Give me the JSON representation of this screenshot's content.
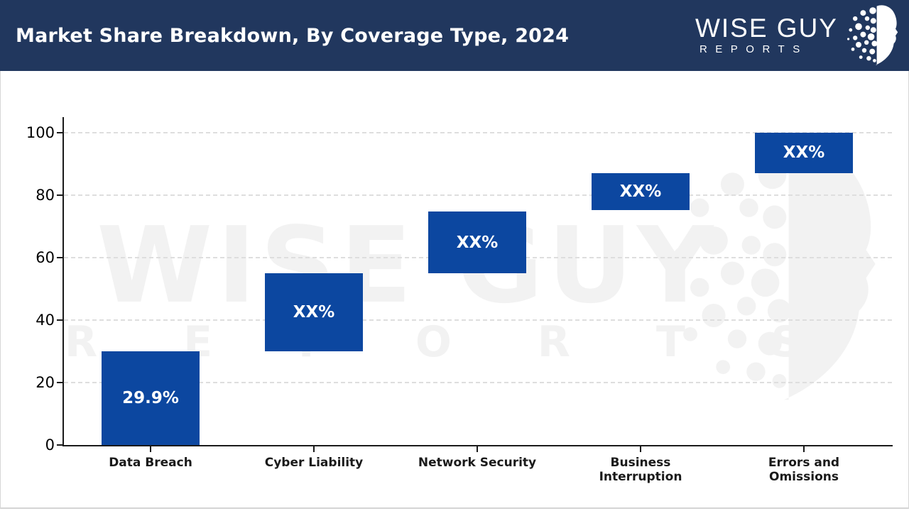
{
  "header": {
    "title": "Market Share Breakdown, By Coverage Type, 2024",
    "logo": {
      "line1": "WISE GUY",
      "line2": "REPORTS"
    }
  },
  "watermark": {
    "line1": "WISE GUY",
    "line2": "R E P O R T S"
  },
  "colors": {
    "header_bg": "#21375E",
    "bar": "#0C47A0",
    "grid": "#DEDEDE",
    "axis": "#1A1A1A",
    "bar_label": "#FFFFFF",
    "watermark": "#F2F2F2"
  },
  "chart_data": {
    "type": "bar",
    "subtype": "waterfall",
    "title": "Market Share Breakdown, By Coverage Type, 2024",
    "categories": [
      "Data Breach",
      "Cyber Liability",
      "Network Security",
      "Business Interruption",
      "Errors and Omissions"
    ],
    "categories_display": [
      "Data Breach",
      "Cyber Liability",
      "Network Security",
      "Business\nInterruption",
      "Errors and\nOmissions"
    ],
    "series": [
      {
        "name": "Market Share",
        "segments": [
          {
            "category": "Data Breach",
            "start": 0,
            "end": 29.9,
            "label": "29.9%"
          },
          {
            "category": "Cyber Liability",
            "start": 29.9,
            "end": 55.0,
            "label": "XX%"
          },
          {
            "category": "Network Security",
            "start": 55.0,
            "end": 74.6,
            "label": "XX%"
          },
          {
            "category": "Business Interruption",
            "start": 75.2,
            "end": 86.9,
            "label": "XX%"
          },
          {
            "category": "Errors and Omissions",
            "start": 86.9,
            "end": 100.0,
            "label": "XX%"
          }
        ]
      }
    ],
    "xlabel": "",
    "ylabel": "",
    "ylim": [
      0,
      105
    ],
    "yticks": [
      0,
      20,
      40,
      60,
      80,
      100
    ],
    "grid": "horizontal-dashed",
    "legend": "none"
  }
}
